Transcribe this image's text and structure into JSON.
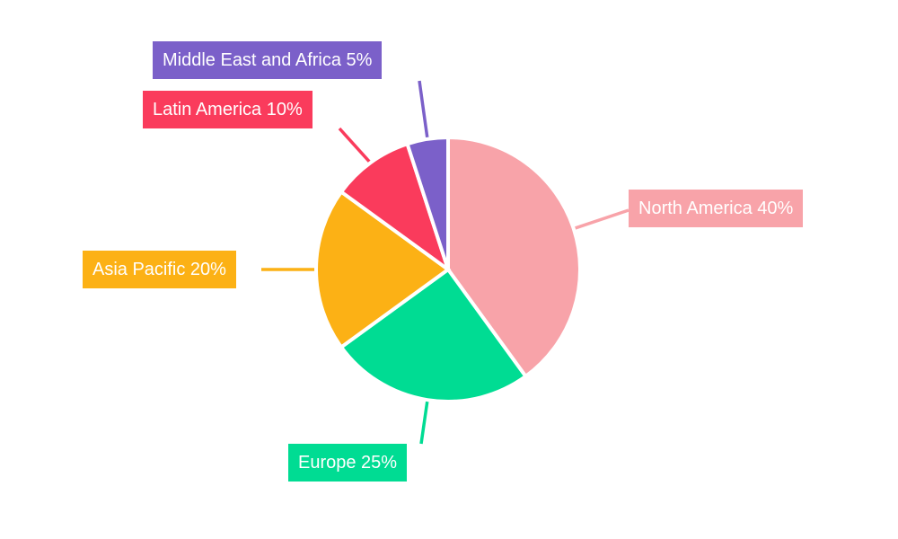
{
  "chart_data": {
    "type": "pie",
    "title": "",
    "unit": "%",
    "start_angle_deg": 0,
    "direction": "clockwise",
    "legend": "none",
    "background": "#ffffff",
    "label_text_color": "#ffffff",
    "slices": [
      {
        "label": "North America",
        "value": 40,
        "color": "#f8a3a9",
        "label_text": "North America 40%"
      },
      {
        "label": "Europe",
        "value": 25,
        "color": "#00dc93",
        "label_text": "Europe 25%"
      },
      {
        "label": "Asia Pacific",
        "value": 20,
        "color": "#fcb115",
        "label_text": "Asia Pacific 20%"
      },
      {
        "label": "Latin America",
        "value": 10,
        "color": "#fa3b5c",
        "label_text": "Latin America 10%"
      },
      {
        "label": "Middle East and Africa",
        "value": 5,
        "color": "#7b60c9",
        "label_text": "Middle East and Africa 5%"
      }
    ]
  }
}
